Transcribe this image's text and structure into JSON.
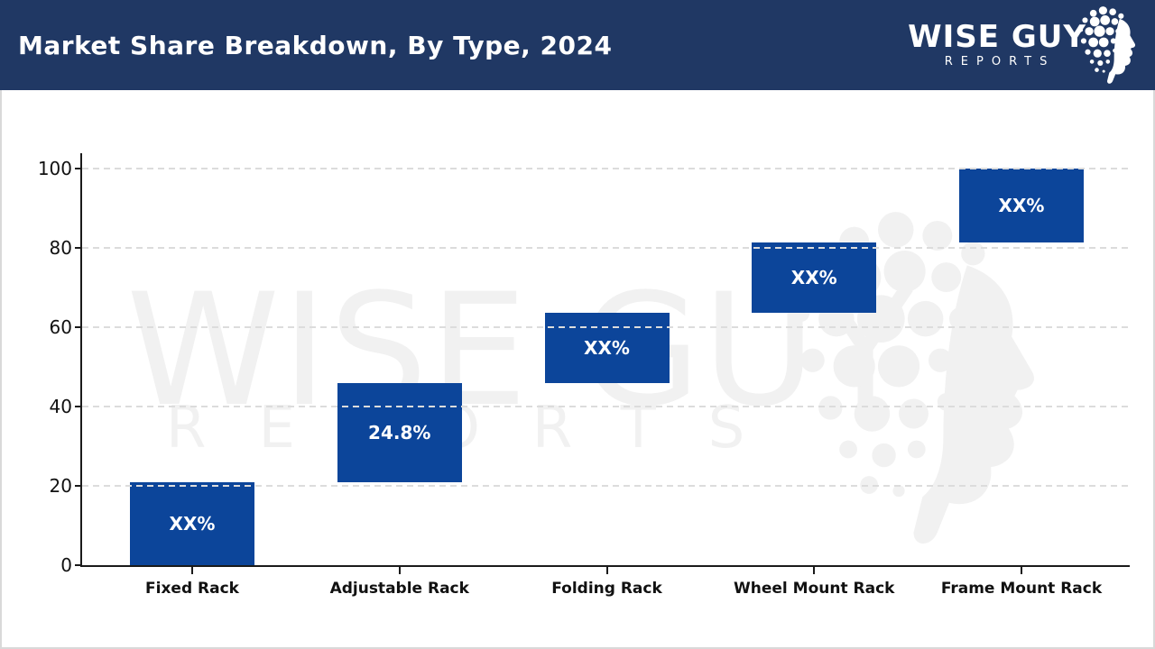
{
  "header": {
    "title": "Market Share Breakdown, By Type, 2024",
    "logo": {
      "brand": "WISE GUY",
      "sub": "REPORTS"
    }
  },
  "watermark": {
    "brand": "WISE GUY",
    "sub": "REPORTS"
  },
  "chart_data": {
    "type": "bar",
    "subtype": "floating-waterfall",
    "title": "Market Share Breakdown, By Type, 2024",
    "categories": [
      "Fixed Rack",
      "Adjustable Rack",
      "Folding Rack",
      "Wheel Mount Rack",
      "Frame Mount Rack"
    ],
    "segments": [
      {
        "category": "Fixed Rack",
        "start": 0,
        "end": 21,
        "label": "XX%"
      },
      {
        "category": "Adjustable Rack",
        "start": 21,
        "end": 45.8,
        "label": "24.8%"
      },
      {
        "category": "Folding Rack",
        "start": 45.8,
        "end": 63.7,
        "label": "XX%"
      },
      {
        "category": "Wheel Mount Rack",
        "start": 63.7,
        "end": 81.4,
        "label": "XX%"
      },
      {
        "category": "Frame Mount Rack",
        "start": 81.4,
        "end": 100,
        "label": "XX%"
      }
    ],
    "yticks": [
      0,
      20,
      40,
      60,
      80,
      100
    ],
    "ylim": [
      0,
      105
    ],
    "xlabel": "",
    "ylabel": "",
    "grid": "horizontal-dashed-above-bars",
    "legend": "none",
    "colors": {
      "bar": "#0c459a",
      "bar_label": "#ffffff",
      "axis": "#1a1a1a",
      "grid": "#dcdcdc",
      "header_bg": "#203864",
      "watermark": "#f1f1f1"
    }
  }
}
